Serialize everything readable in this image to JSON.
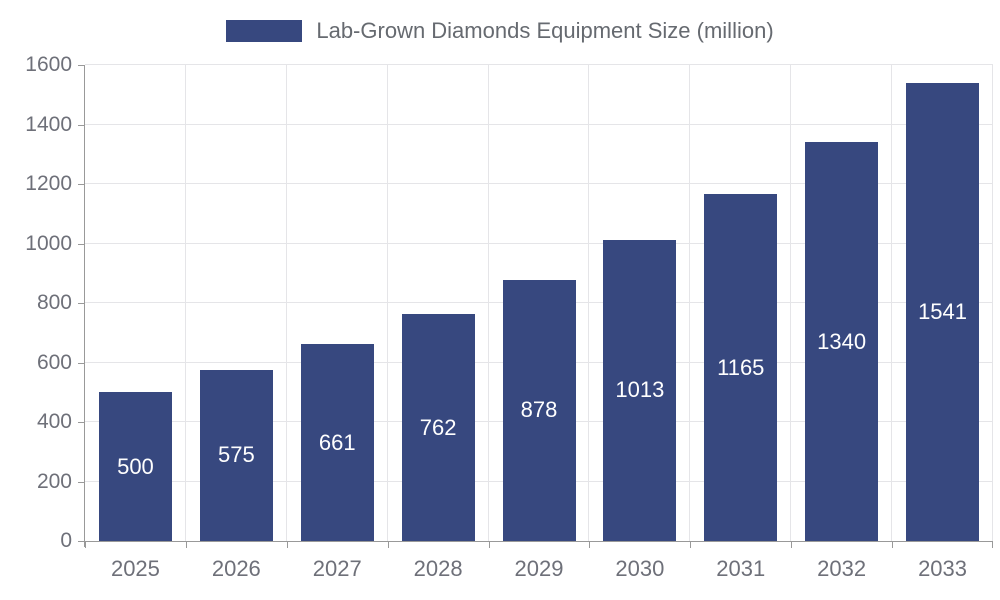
{
  "legend": {
    "label": "Lab-Grown Diamonds Equipment Size (million)"
  },
  "chart_data": {
    "type": "bar",
    "title": "Lab-Grown Diamonds Equipment Size (million)",
    "categories": [
      "2025",
      "2026",
      "2027",
      "2028",
      "2029",
      "2030",
      "2031",
      "2032",
      "2033"
    ],
    "values": [
      500,
      575,
      661,
      762,
      878,
      1013,
      1165,
      1340,
      1541
    ],
    "series": [
      {
        "name": "Lab-Grown Diamonds Equipment Size (million)",
        "values": [
          500,
          575,
          661,
          762,
          878,
          1013,
          1165,
          1340,
          1541
        ]
      }
    ],
    "xlabel": "",
    "ylabel": "",
    "ylim": [
      0,
      1600
    ],
    "ytick_step": 200,
    "yticks": [
      0,
      200,
      400,
      600,
      800,
      1000,
      1200,
      1400,
      1600
    ],
    "grid": true,
    "legend_position": "top-center",
    "value_labels": "inside-center"
  },
  "colors": {
    "bar": "#37487F",
    "grid_line": "#e5e5e8",
    "axis_line": "#999999",
    "tick_label": "#6E7079",
    "legend_text": "#666a70",
    "value_label": "#ffffff",
    "background": "#ffffff"
  }
}
